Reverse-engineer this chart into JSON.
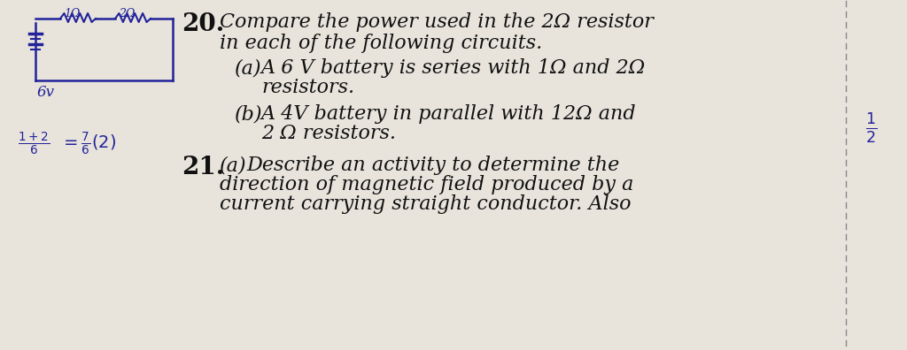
{
  "bg_color": "#b8b0a0",
  "page_color": "#e8e4dc",
  "title_num": "20.",
  "title_line1": "Compare the power used in the 2Ω resistor",
  "title_line2": "in each of the following circuits.",
  "a_label": "(a)",
  "a_line1": "A 6 V battery is series with 1Ω and 2Ω",
  "a_line2": "resistors.",
  "b_label": "(b)",
  "b_line1": "A 4V battery in parallel with 12Ω and",
  "b_line2": "2 Ω resistors.",
  "q21_num": "21.",
  "q21_label": "(a)",
  "q21_line1": "Describe an activity to determine the",
  "q21_line2": "direction of magnetic field produced by a",
  "q21_line3": "current carrying straight conductor. Also",
  "text_color": "#111111",
  "hw_color": "#22229a",
  "fs_title_num": 20,
  "fs_body": 16,
  "fs_hw": 14
}
